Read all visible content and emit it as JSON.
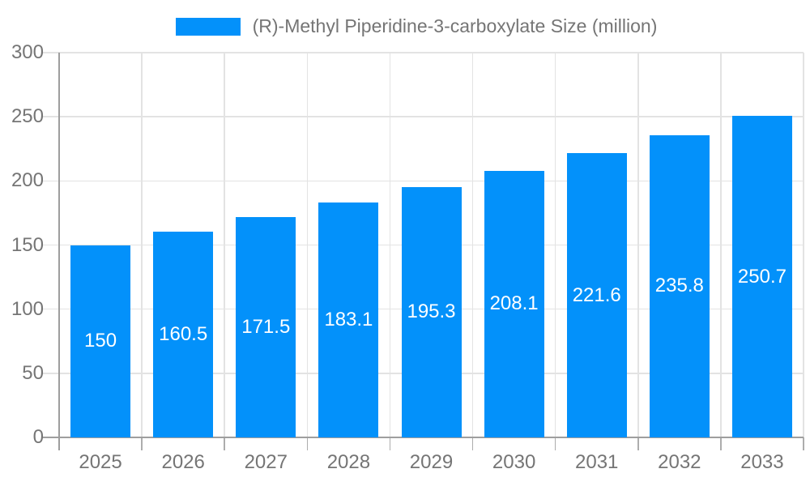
{
  "chart_data": {
    "type": "bar",
    "title": "(R)-Methyl Piperidine-3-carboxylate Size (million)",
    "categories": [
      "2025",
      "2026",
      "2027",
      "2028",
      "2029",
      "2030",
      "2031",
      "2032",
      "2033"
    ],
    "values": [
      150,
      160.5,
      171.5,
      183.1,
      195.3,
      208.1,
      221.6,
      235.8,
      250.7
    ],
    "value_labels": [
      "150",
      "160.5",
      "171.5",
      "183.1",
      "195.3",
      "208.1",
      "221.6",
      "235.8",
      "250.7"
    ],
    "xlabel": "",
    "ylabel": "",
    "ylim": [
      0,
      300
    ],
    "ytick_interval": 50,
    "ytick_labels": [
      "0",
      "50",
      "100",
      "150",
      "200",
      "250",
      "300"
    ],
    "grid": true,
    "legend_position": "top-center",
    "colors": {
      "bar": "#0391FA",
      "bar_label": "#FFFFFF",
      "axis_line": "#9E9E9E",
      "grid_line": "#E3E3E3",
      "x_tick_line": "#ADADAD",
      "text": "#757575",
      "background": "#FFFFFF"
    }
  }
}
